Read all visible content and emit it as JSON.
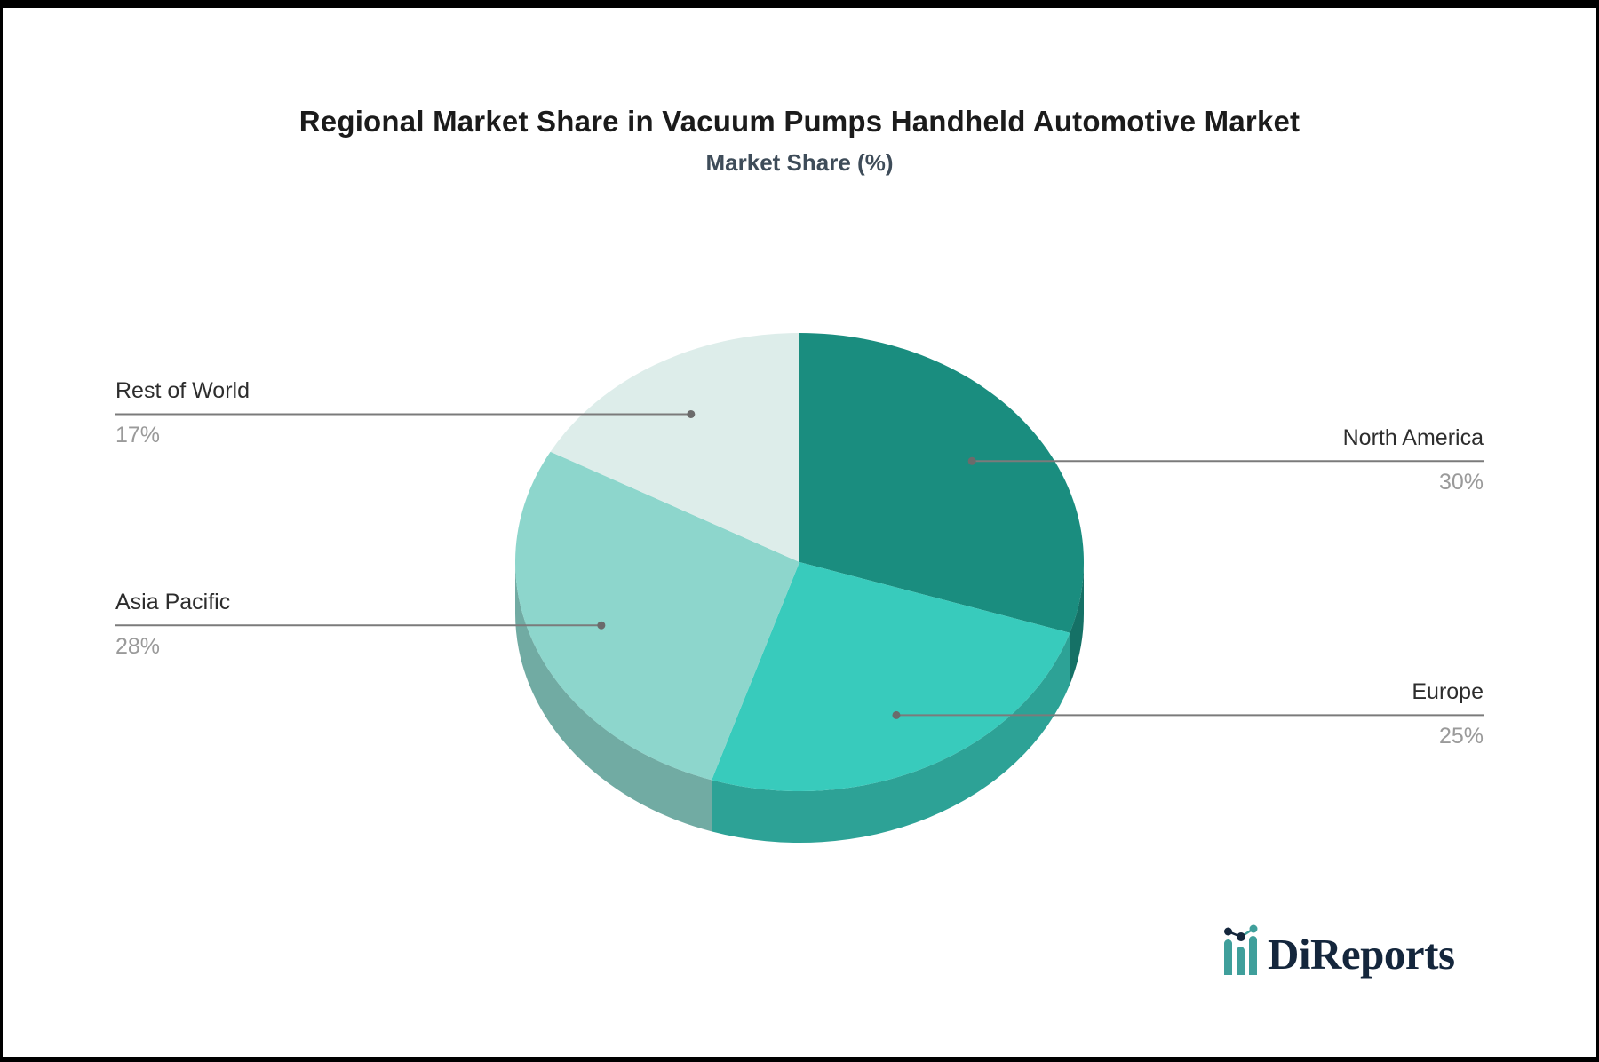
{
  "title": "Regional Market Share in Vacuum Pumps Handheld Automotive Market",
  "subtitle": "Market Share (%)",
  "chart_data": {
    "type": "pie",
    "style": "3d",
    "title": "Regional Market Share in Vacuum Pumps Handheld Automotive Market",
    "subtitle": "Market Share (%)",
    "unit": "%",
    "start_angle_deg": 0,
    "direction": "clockwise",
    "legend_position": "callout-labels",
    "slices": [
      {
        "label": "North America",
        "value": 30,
        "pct_label": "30%",
        "color": "#1a8d7f",
        "callout_side": "right"
      },
      {
        "label": "Europe",
        "value": 25,
        "pct_label": "25%",
        "color": "#38cbbc",
        "callout_side": "right"
      },
      {
        "label": "Asia Pacific",
        "value": 28,
        "pct_label": "28%",
        "color": "#8dd6cc",
        "callout_side": "left"
      },
      {
        "label": "Rest of World",
        "value": 17,
        "pct_label": "17%",
        "color": "#ddedea",
        "callout_side": "left"
      }
    ],
    "palette": {
      "leader_line": "#7b7b7b",
      "leader_dot": "#6b6b6b",
      "label_text": "#2d2d2d",
      "pct_text": "#9a9a9a"
    }
  },
  "branding": {
    "logo_text": "DiReports",
    "logo_navy": "#14263c",
    "logo_teal": "#3f9f9b"
  }
}
